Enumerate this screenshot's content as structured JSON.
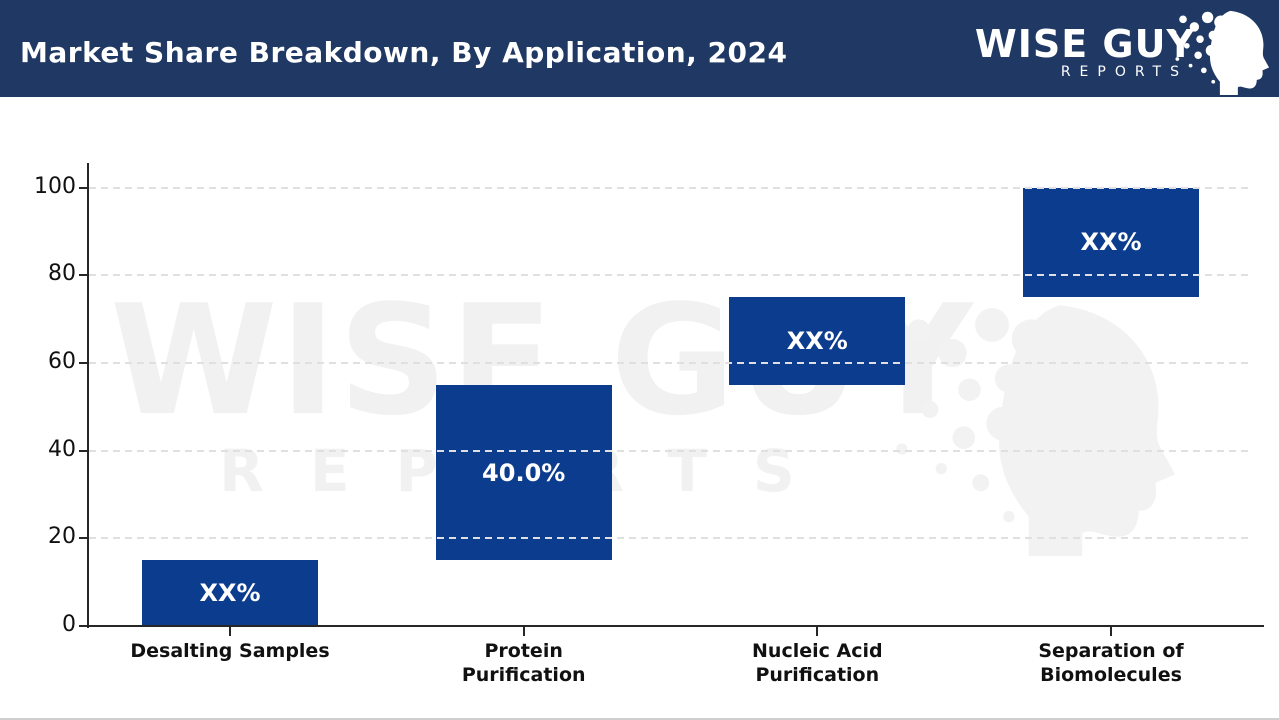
{
  "header": {
    "title": "Market Share Breakdown, By Application, 2024",
    "logo": {
      "line1": "WISE GUY",
      "line2": "REPORTS"
    },
    "bg_color": "#1f3864"
  },
  "watermark": {
    "line1": "WISE GUY",
    "line2": "REPORTS"
  },
  "chart_data": {
    "type": "bar",
    "subtype": "waterfall-stacked-breakdown",
    "title": "Market Share Breakdown, By Application, 2024",
    "categories": [
      "Desalting Samples",
      "Protein Purification",
      "Nucleic Acid Purification",
      "Separation of Biomolecules"
    ],
    "category_label_lines": [
      [
        "Desalting Samples"
      ],
      [
        "Protein",
        "Purification"
      ],
      [
        "Nucleic Acid",
        "Purification"
      ],
      [
        "Separation of",
        "Biomolecules"
      ]
    ],
    "segments": [
      {
        "category": "Desalting Samples",
        "start": 0,
        "end": 15,
        "height": 15,
        "value_label": "XX%"
      },
      {
        "category": "Protein Purification",
        "start": 15,
        "end": 55,
        "height": 40,
        "value_label": "40.0%"
      },
      {
        "category": "Nucleic Acid Purification",
        "start": 55,
        "end": 75,
        "height": 20,
        "value_label": "XX%"
      },
      {
        "category": "Separation of Biomolecules",
        "start": 75,
        "end": 100,
        "height": 25,
        "value_label": "XX%"
      }
    ],
    "yticks": [
      0,
      20,
      40,
      60,
      80,
      100
    ],
    "ylim": [
      0,
      105
    ],
    "xlabel": "",
    "ylabel": "",
    "grid": "horizontal-dashed-above-bars",
    "legend": "none",
    "bar_color": "#0c3c8e",
    "gridline_color": "#e0e0e0",
    "axis_color": "#262626"
  }
}
